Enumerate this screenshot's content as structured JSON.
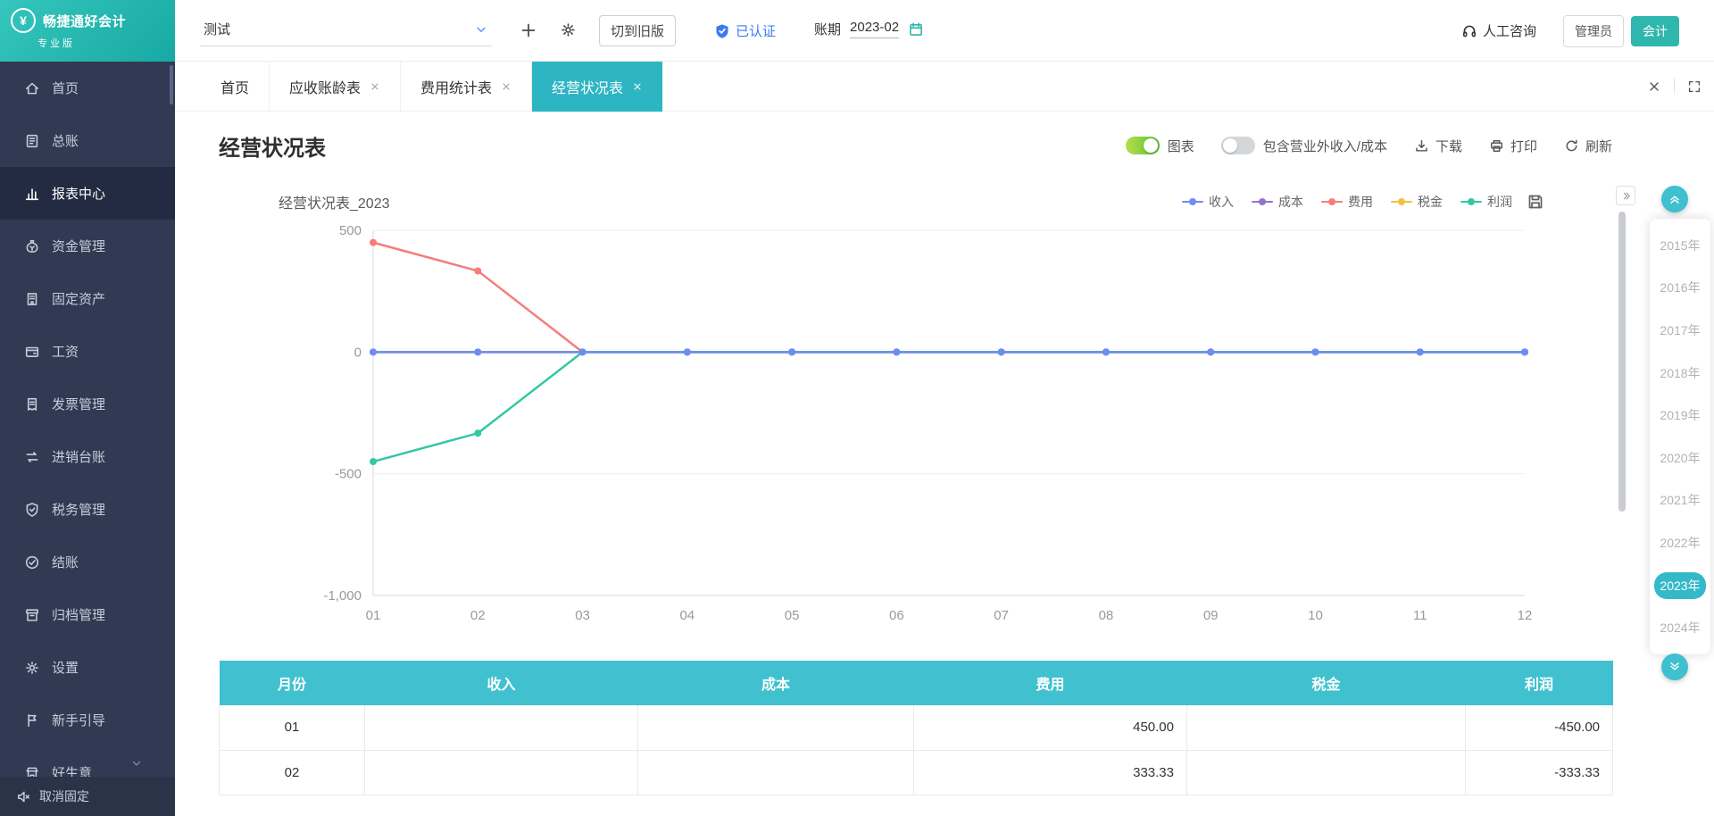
{
  "app": {
    "logo_mark": "¥",
    "logo_title": "畅捷通好会计",
    "logo_subtitle": "专业版"
  },
  "colors": {
    "brand_teal": "#2eb5c3",
    "table_header_teal": "#41c1d0",
    "toggle_on_green": "#55c32e",
    "certified_blue": "#3a7bf0"
  },
  "sidebar": {
    "items": [
      {
        "id": "home",
        "label": "首页"
      },
      {
        "id": "ledger",
        "label": "总账"
      },
      {
        "id": "report",
        "label": "报表中心",
        "active": true
      },
      {
        "id": "fund",
        "label": "资金管理"
      },
      {
        "id": "asset",
        "label": "固定资产"
      },
      {
        "id": "payroll",
        "label": "工资"
      },
      {
        "id": "invoice",
        "label": "发票管理"
      },
      {
        "id": "inout",
        "label": "进销台账"
      },
      {
        "id": "tax",
        "label": "税务管理"
      },
      {
        "id": "closing",
        "label": "结账"
      },
      {
        "id": "archive",
        "label": "归档管理"
      },
      {
        "id": "settings",
        "label": "设置"
      },
      {
        "id": "guide",
        "label": "新手引导"
      },
      {
        "id": "shop",
        "label": "好生意"
      }
    ],
    "footer": {
      "label": "取消固定"
    }
  },
  "header": {
    "account_select": {
      "value": "测试"
    },
    "switch_old_label": "切到旧版",
    "certified_label": "已认证",
    "period_label": "账期",
    "period_value": "2023-02",
    "consult_label": "人工咨询",
    "admin_label": "管理员",
    "role_label": "会计"
  },
  "tabs": {
    "items": [
      {
        "id": "home",
        "label": "首页",
        "closable": false
      },
      {
        "id": "receivable-aging",
        "label": "应收账龄表",
        "closable": true
      },
      {
        "id": "expense-stats",
        "label": "费用统计表",
        "closable": true
      },
      {
        "id": "operating-status",
        "label": "经营状况表",
        "closable": true,
        "active": true
      }
    ]
  },
  "toolbar": {
    "page_title": "经营状况表",
    "chart_toggle_label": "图表",
    "chart_toggle_on": true,
    "include_toggle_label": "包含营业外收入/成本",
    "include_toggle_on": false,
    "download_label": "下载",
    "print_label": "打印",
    "refresh_label": "刷新"
  },
  "chart_data": {
    "type": "line",
    "title": "经营状况表_2023",
    "x": [
      "01",
      "02",
      "03",
      "04",
      "05",
      "06",
      "07",
      "08",
      "09",
      "10",
      "11",
      "12"
    ],
    "ylim": [
      -1000,
      500
    ],
    "yticks": [
      500,
      0,
      -500,
      -1000
    ],
    "grid": true,
    "legend_position": "top-right",
    "series": [
      {
        "id": "income",
        "name": "收入",
        "color": "#6b8df5",
        "values": [
          0,
          0,
          0,
          0,
          0,
          0,
          0,
          0,
          0,
          0,
          0,
          0
        ]
      },
      {
        "id": "cost",
        "name": "成本",
        "color": "#9672cf",
        "values": [
          0,
          0,
          0,
          0,
          0,
          0,
          0,
          0,
          0,
          0,
          0,
          0
        ]
      },
      {
        "id": "expense",
        "name": "费用",
        "color": "#f57d7d",
        "values": [
          450,
          333.33,
          0,
          0,
          0,
          0,
          0,
          0,
          0,
          0,
          0,
          0
        ]
      },
      {
        "id": "tax",
        "name": "税金",
        "color": "#f5c13d",
        "values": [
          0,
          0,
          0,
          0,
          0,
          0,
          0,
          0,
          0,
          0,
          0,
          0
        ]
      },
      {
        "id": "profit",
        "name": "利润",
        "color": "#34c7a6",
        "values": [
          -450,
          -333.33,
          0,
          0,
          0,
          0,
          0,
          0,
          0,
          0,
          0,
          0
        ]
      }
    ]
  },
  "table": {
    "columns": [
      "月份",
      "收入",
      "成本",
      "费用",
      "税金",
      "利润"
    ],
    "rows": [
      [
        "01",
        "",
        "",
        "450.00",
        "",
        "-450.00"
      ],
      [
        "02",
        "",
        "",
        "333.33",
        "",
        "-333.33"
      ]
    ]
  },
  "year_panel": {
    "years": [
      "2015年",
      "2016年",
      "2017年",
      "2018年",
      "2019年",
      "2020年",
      "2021年",
      "2022年",
      "2023年",
      "2024年"
    ],
    "selected": "2023年"
  }
}
